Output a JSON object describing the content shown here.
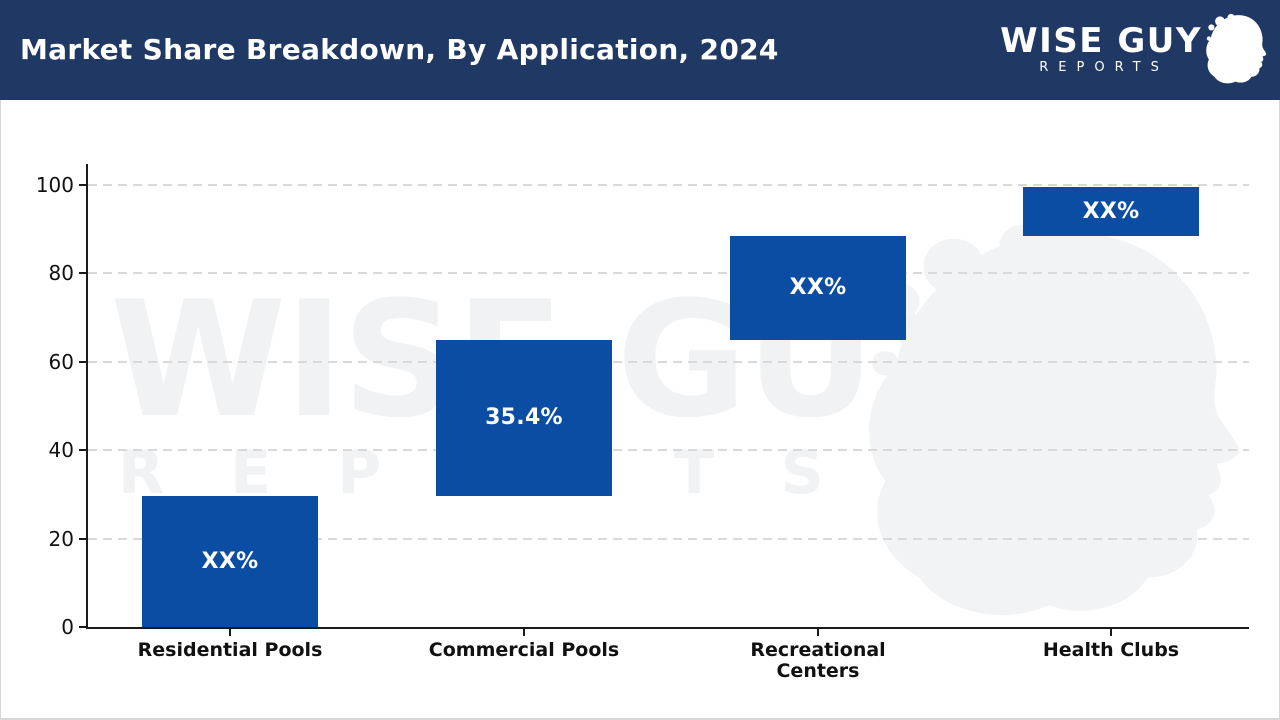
{
  "header": {
    "title": "Market Share Breakdown, By Application, 2024"
  },
  "brand": {
    "name": "WISE GUY",
    "sub": "REPORTS",
    "face_icon": "dotted-head-profile"
  },
  "watermark": {
    "wordmark": "WISE GUY",
    "sub": "REPORTS",
    "face_icon": "dotted-head-profile"
  },
  "colors": {
    "header_bg": "#1F3864",
    "header_text": "#FFFFFF",
    "bar": "#0B4DA2",
    "bar_label": "#FFFFFF",
    "grid": "#D9D9D9",
    "axis": "#1A1A1A",
    "watermark": "#F1F2F4",
    "page_border": "#D7D7D7"
  },
  "chart_data": {
    "type": "bar",
    "variant": "floating-waterfall",
    "title": "Market Share Breakdown, By Application, 2024",
    "xlabel": "",
    "ylabel": "",
    "ylim": [
      0,
      105
    ],
    "yticks": [
      0,
      20,
      40,
      60,
      80,
      100
    ],
    "grid": "horizontal-dashed",
    "legend": "none",
    "categories": [
      "Residential Pools",
      "Commercial Pools",
      "Recreational Centers",
      "Health Clubs"
    ],
    "segments": [
      {
        "category": "Residential Pools",
        "from": 0,
        "to": 29.6,
        "label": "XX%"
      },
      {
        "category": "Commercial Pools",
        "from": 29.6,
        "to": 65.0,
        "label": "35.4%"
      },
      {
        "category": "Recreational Centers",
        "from": 65.0,
        "to": 88.5,
        "label": "XX%"
      },
      {
        "category": "Health Clubs",
        "from": 88.5,
        "to": 99.6,
        "label": "XX%"
      }
    ]
  }
}
